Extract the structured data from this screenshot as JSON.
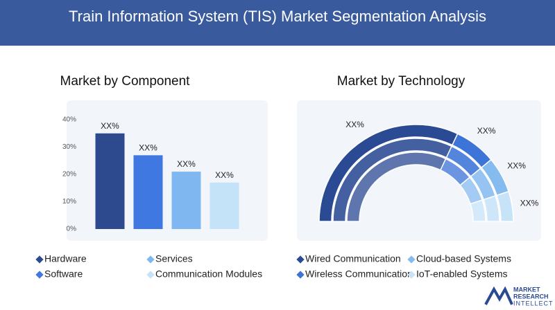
{
  "header": {
    "title": "Train Information System (TIS) Market Segmentation Analysis"
  },
  "chart_data": [
    {
      "type": "bar",
      "title": "Market by Component",
      "categories": [
        "Hardware",
        "Software",
        "Services",
        "Communication Modules"
      ],
      "values": [
        35,
        27,
        21,
        17
      ],
      "value_labels": [
        "XX%",
        "XX%",
        "XX%",
        "XX%"
      ],
      "colors": [
        "#2e4a8f",
        "#3f78e0",
        "#7fb8f0",
        "#c4e2f8"
      ],
      "ylim": [
        0,
        40
      ],
      "yticks": [
        {
          "value": 0,
          "label": "0%"
        },
        {
          "value": 10,
          "label": "10%"
        },
        {
          "value": 20,
          "label": "20%"
        },
        {
          "value": 30,
          "label": "30%"
        },
        {
          "value": 40,
          "label": "40%"
        }
      ]
    },
    {
      "type": "pie",
      "title": "Market by Technology",
      "categories": [
        "Wired Communication",
        "Wireless Communication",
        "Cloud-based Systems",
        "IoT-enabled Systems"
      ],
      "values": [
        64,
        14,
        12,
        10
      ],
      "value_labels": [
        "XX%",
        "XX%",
        "XX%",
        "XX%"
      ],
      "colors": [
        "#2b4a94",
        "#3d74d8",
        "#86bbf0",
        "#c6e3f8"
      ]
    }
  ],
  "logo": [
    "MARKET",
    "RESEARCH",
    "INTELLECT"
  ]
}
